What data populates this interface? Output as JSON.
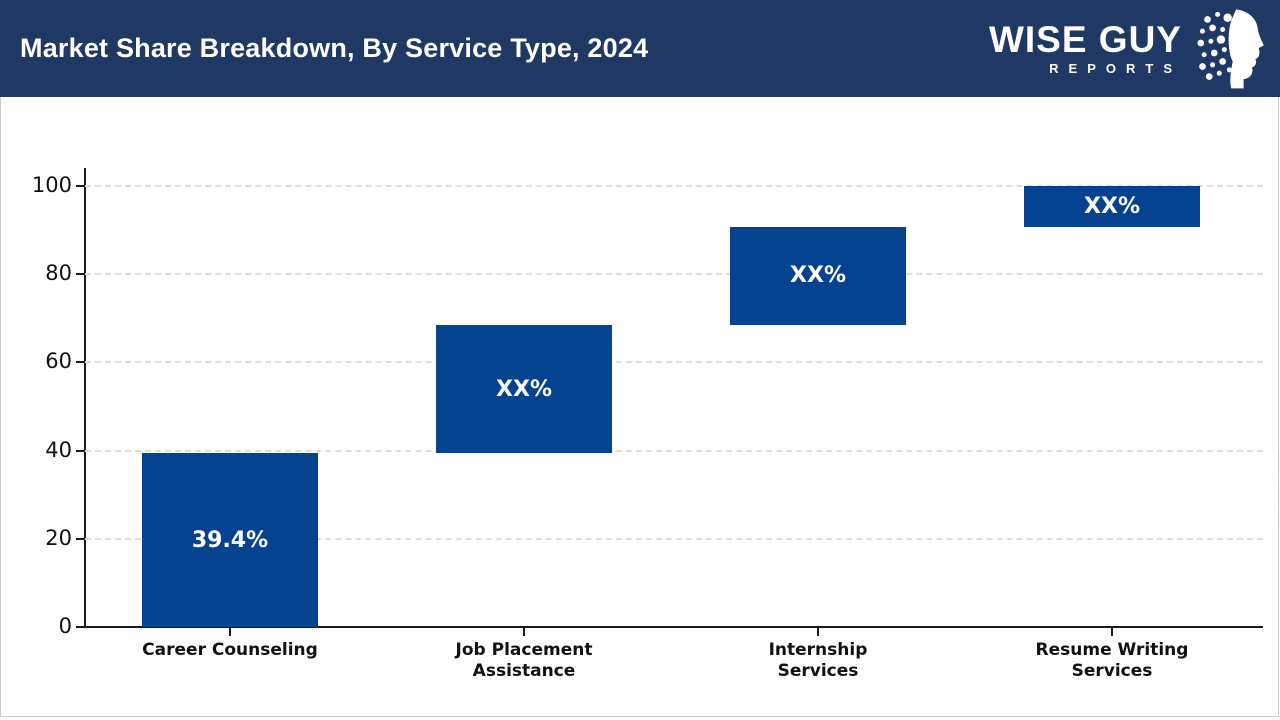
{
  "header": {
    "title": "Market Share Breakdown, By Service Type, 2024",
    "logo": {
      "line1": "WISE GUY",
      "line2": "REPORTS"
    }
  },
  "watermark": {
    "line1": "WISE GU",
    "line2": "P O R T S"
  },
  "chart_data": {
    "type": "bar",
    "subtype": "waterfall",
    "title": "Market Share Breakdown, By Service Type, 2024",
    "categories": [
      "Career Counseling",
      "Job Placement\nAssistance",
      "Internship\nServices",
      "Resume Writing\nServices"
    ],
    "segments": [
      {
        "category": "Career Counseling",
        "start": 0,
        "end": 39.4,
        "label": "39.4%"
      },
      {
        "category": "Job Placement Assistance",
        "start": 39.4,
        "end": 68.5,
        "label": "XX%"
      },
      {
        "category": "Internship Services",
        "start": 68.5,
        "end": 90.7,
        "label": "XX%"
      },
      {
        "category": "Resume Writing Services",
        "start": 90.7,
        "end": 100,
        "label": "XX%"
      }
    ],
    "yticks": [
      0,
      20,
      40,
      60,
      80,
      100
    ],
    "ylim": [
      0,
      100
    ],
    "xlabel": "",
    "ylabel": "",
    "grid": "horizontal-dashed",
    "legend": "none",
    "bar_color": "#05428f",
    "bar_label_color": "#ffffff",
    "axis_color": "#1a1a1a",
    "header_color": "#1f3864"
  }
}
